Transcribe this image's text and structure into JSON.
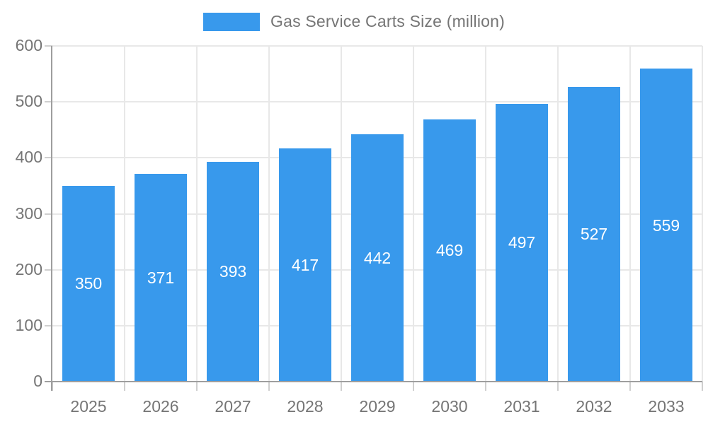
{
  "legend": {
    "swatch_color": "#3899EC"
  },
  "chart_data": {
    "type": "bar",
    "title": "Gas Service Carts Size (million)",
    "categories": [
      "2025",
      "2026",
      "2027",
      "2028",
      "2029",
      "2030",
      "2031",
      "2032",
      "2033"
    ],
    "values": [
      350,
      371,
      393,
      417,
      442,
      469,
      497,
      527,
      559
    ],
    "xlabel": "",
    "ylabel": "",
    "ylim": [
      0,
      600
    ],
    "yticks": [
      0,
      100,
      200,
      300,
      400,
      500,
      600
    ],
    "grid": true,
    "legend_position": "top-center",
    "bar_color": "#3899EC",
    "value_label_color": "#ffffff",
    "axis_color": "#9e9e9e",
    "tick_color": "#cfcfcf",
    "grid_color": "#e8e8e8",
    "text_color": "#757575",
    "background_color": "#ffffff"
  }
}
